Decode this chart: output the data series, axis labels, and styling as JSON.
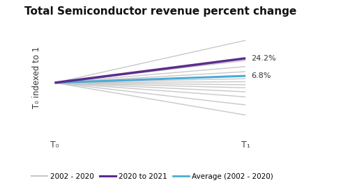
{
  "title": "Total Semiconductor revenue percent change",
  "ylabel": "T₀ indexed to 1",
  "xlabel_t0": "T₀",
  "xlabel_t1": "T₁",
  "t0_value": 1.0,
  "purple_t1": 1.242,
  "avg_t1": 1.068,
  "gray_t1_values": [
    1.42,
    1.22,
    1.16,
    1.11,
    1.07,
    1.04,
    1.01,
    0.98,
    0.95,
    0.91,
    0.86,
    0.78,
    0.68
  ],
  "purple_color": "#5B2D8E",
  "avg_color": "#4BACD6",
  "gray_color": "#C8C8C8",
  "label_242": "24.2%",
  "label_68": "6.8%",
  "legend_gray": "2002 - 2020",
  "legend_purple": "2020 to 2021",
  "legend_avg": "Average (2002 - 2020)",
  "background_color": "#FFFFFF",
  "grid_color": "#E0E0E0",
  "title_fontsize": 11,
  "axis_label_fontsize": 8.5,
  "annotation_fontsize": 8,
  "tick_fontsize": 9
}
